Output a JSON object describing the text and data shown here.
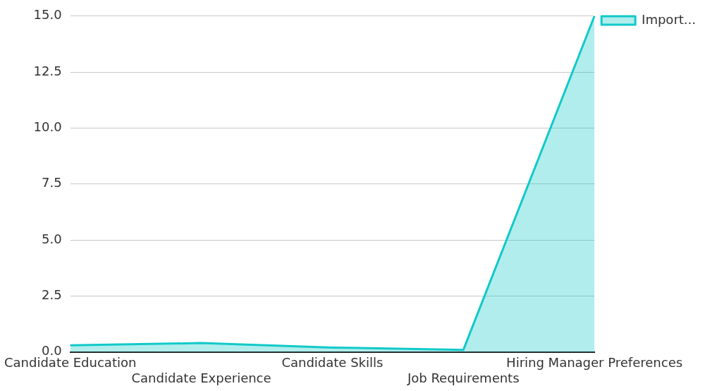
{
  "chart_data": {
    "type": "area",
    "categories": [
      "Candidate Education",
      "Candidate Experience",
      "Candidate Skills",
      "Job Requirements",
      "Hiring Manager Preferences"
    ],
    "series": [
      {
        "name": "Import...",
        "color": "#12c9c9",
        "values": [
          0.3,
          0.4,
          0.2,
          0.1,
          15.0
        ]
      }
    ],
    "ylim": [
      0,
      15
    ],
    "yticks": [
      {
        "value": 0,
        "label": "0.0"
      },
      {
        "value": 2.5,
        "label": "2.5"
      },
      {
        "value": 5,
        "label": "5.0"
      },
      {
        "value": 7.5,
        "label": "7.5"
      },
      {
        "value": 10,
        "label": "10.0"
      },
      {
        "value": 12.5,
        "label": "12.5"
      },
      {
        "value": 15,
        "label": "15.0"
      }
    ],
    "grid": "y",
    "legend": "top right"
  }
}
